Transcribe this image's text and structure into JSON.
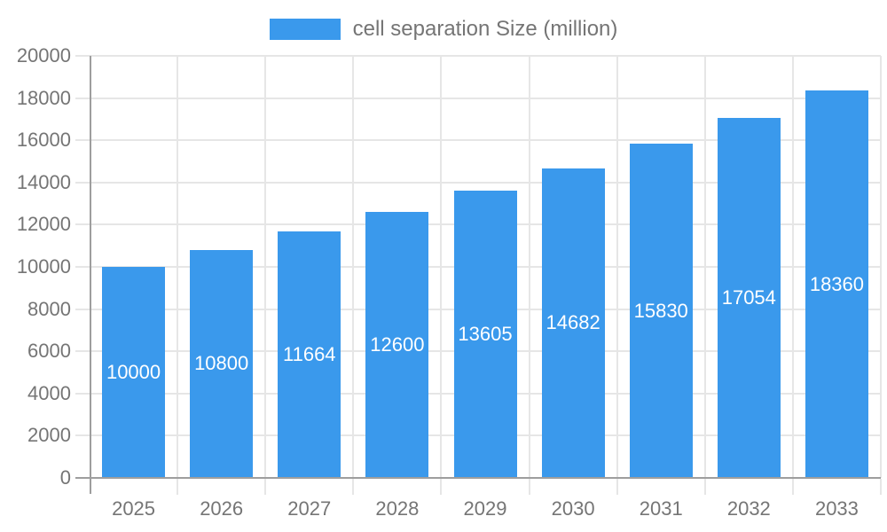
{
  "legend": {
    "label": "cell separation Size (million)"
  },
  "chart_data": {
    "type": "bar",
    "title": "",
    "series_name": "cell separation Size (million)",
    "categories": [
      "2025",
      "2026",
      "2027",
      "2028",
      "2029",
      "2030",
      "2031",
      "2032",
      "2033"
    ],
    "values": [
      10000,
      10800,
      11664,
      12600,
      13605,
      14682,
      15830,
      17054,
      18360
    ],
    "value_labels": [
      "10000",
      "10800",
      "11664",
      "12600",
      "13605",
      "14682",
      "15830",
      "17054",
      "18360"
    ],
    "xlabel": "",
    "ylabel": "",
    "ylim": [
      0,
      20000
    ],
    "ytick_step": 2000,
    "yticks": [
      0,
      2000,
      4000,
      6000,
      8000,
      10000,
      12000,
      14000,
      16000,
      18000,
      20000
    ],
    "ytick_labels": [
      "0",
      "2000",
      "4000",
      "6000",
      "8000",
      "10000",
      "12000",
      "14000",
      "16000",
      "18000",
      "20000"
    ],
    "grid": true,
    "legend_position": "top-center",
    "value_label_position": "inside-center",
    "colors": {
      "bar": "#3a99ec",
      "value_label": "#ffffff",
      "axis_text": "#757575",
      "grid_line": "#e6e6e6",
      "axis_line": "#9e9e9e",
      "background": "#ffffff"
    }
  }
}
